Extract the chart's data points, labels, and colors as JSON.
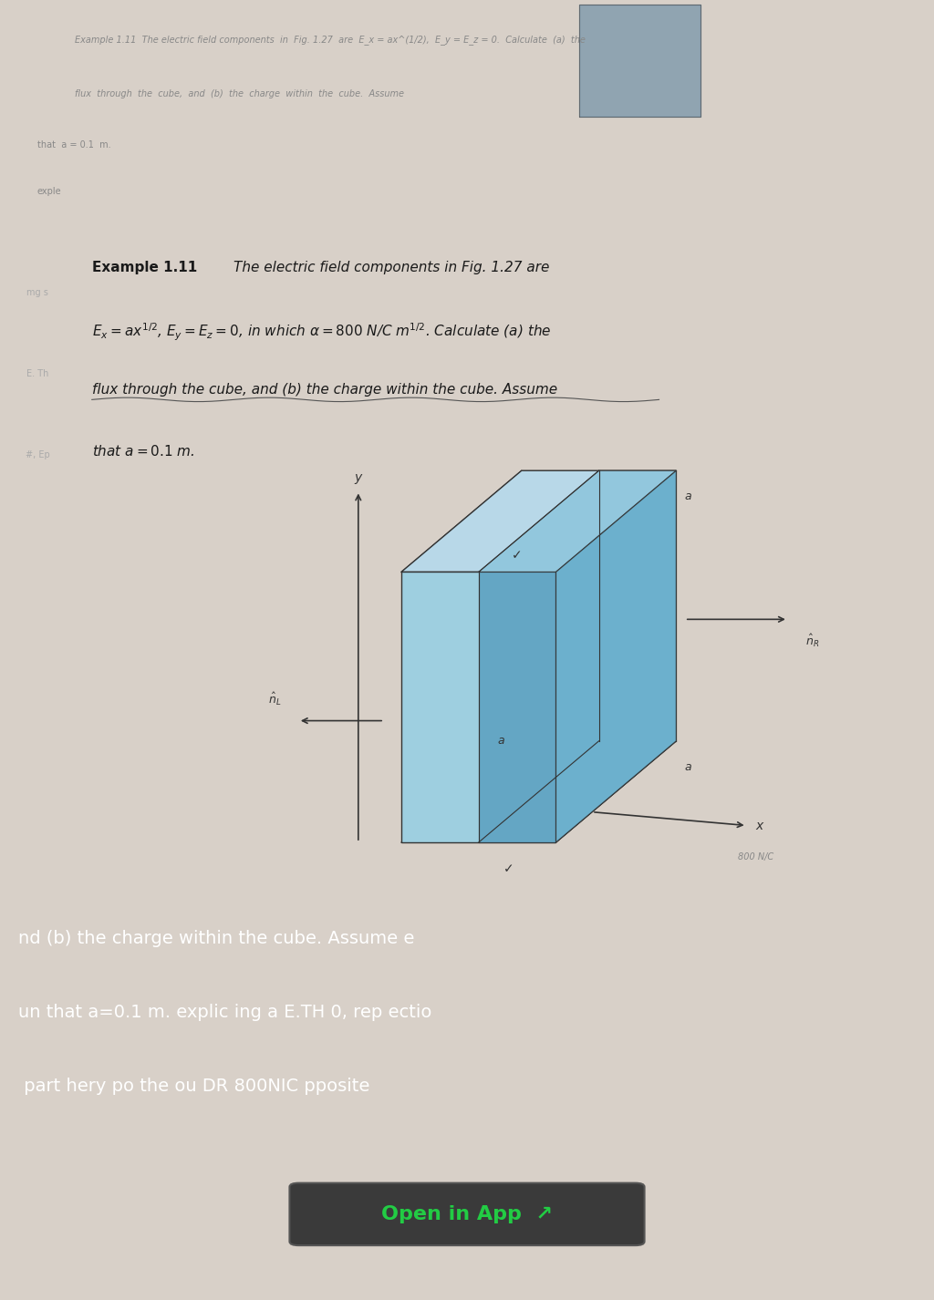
{
  "bg_top": "#2a2a2a",
  "bg_paper": "#d8d0c8",
  "bg_dark_bottom": "#3a3a3a",
  "title_text": "Example 1.11",
  "body_text_line1": "The electric field components in Fig. 1.27 are",
  "body_text_line2": "$E_x = ax^{1/2}$, $E_y = E_z = 0$, in which $\\alpha = 800$ N/C m$^{1/2}$. Calculate (a) the",
  "body_text_line3": "flux through the cube, and (b) the charge within the cube. Assume",
  "body_text_line4": "that $a = 0.1$ m.",
  "bottom_text_line1": "nd (b) the charge within the cube. Assume e",
  "bottom_text_line2": "un that a=0.1 m. explic ing a E.TH 0, rep ectio",
  "bottom_text_line3": " part hery po the ou DR 800NIC pposite",
  "open_in_app": "Open in App ↗",
  "cube_fill": "#7ab8d4",
  "cube_edge": "#333333",
  "axis_color": "#333333",
  "label_color": "#333333",
  "arrow_color": "#333333"
}
